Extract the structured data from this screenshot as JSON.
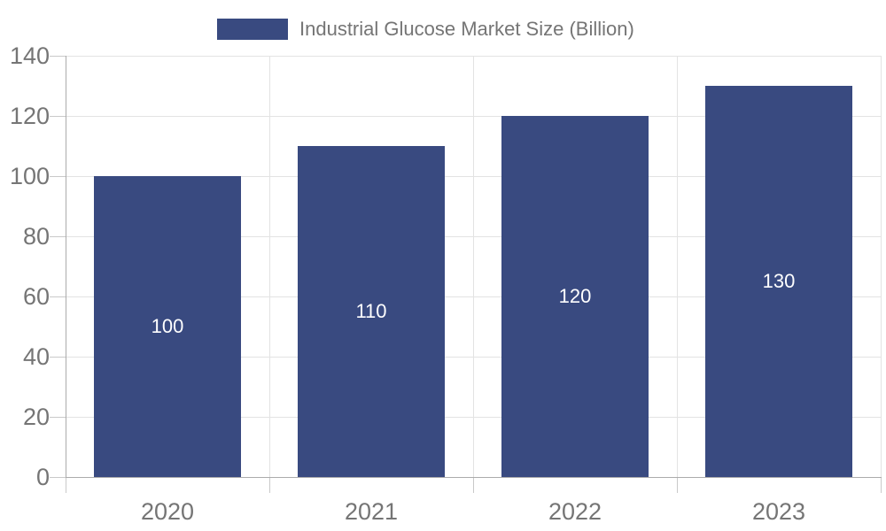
{
  "chart_data": {
    "type": "bar",
    "title": "Industrial Glucose Market Size (Billion)",
    "categories": [
      "2020",
      "2021",
      "2022",
      "2023"
    ],
    "values": [
      100,
      110,
      120,
      130
    ],
    "bar_value_labels": [
      "100",
      "110",
      "120",
      "130"
    ],
    "xlabel": "",
    "ylabel": "",
    "ylim": [
      0,
      140
    ],
    "yticks": [
      0,
      20,
      40,
      60,
      80,
      100,
      120,
      140
    ],
    "grid": true,
    "legend_position": "top-center",
    "legend_entries": [
      "Industrial Glucose Market Size (Billion)"
    ],
    "colors": {
      "bar": "#394a80",
      "bar_value_text": "#ffffff",
      "axis_text": "#757575",
      "legend_text": "#757575",
      "gridline": "#e3e3e3",
      "tick_line": "#c9c9c9",
      "axis_line": "#ababab",
      "background": "#ffffff"
    }
  }
}
